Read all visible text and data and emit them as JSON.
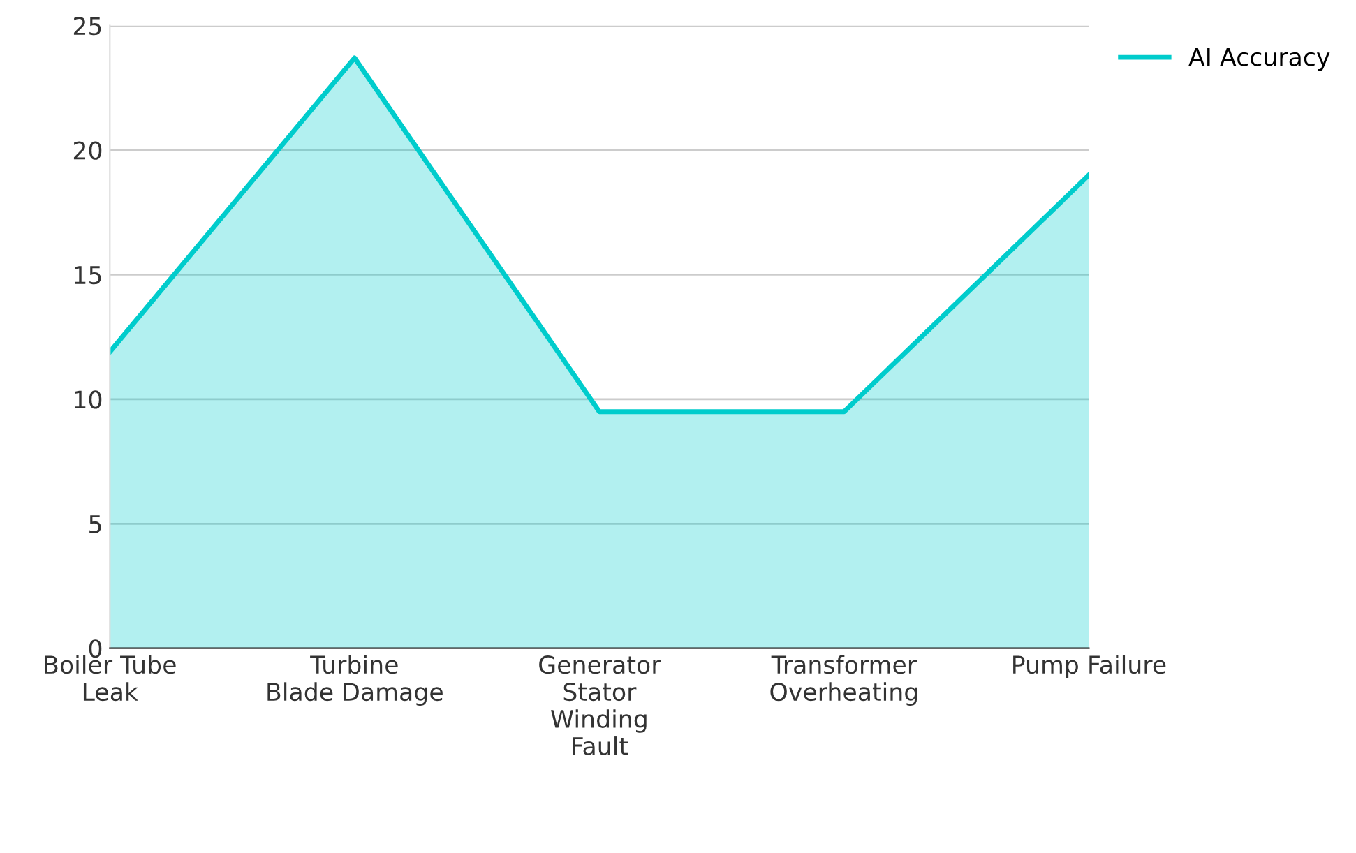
{
  "chart_data": {
    "type": "area",
    "categories": [
      "Boiler Tube Leak",
      "Turbine Blade Damage",
      "Generator Stator Winding Fault",
      "Transformer Overheating",
      "Pump Failure"
    ],
    "series": [
      {
        "name": "AI Accuracy",
        "color": "#00cccc",
        "values": [
          11.9,
          23.7,
          9.5,
          9.5,
          19.0
        ]
      }
    ],
    "ylim": [
      0,
      25
    ],
    "yticks": [
      0,
      5,
      10,
      15,
      20,
      25
    ],
    "grid": "y",
    "legend": "top right"
  }
}
